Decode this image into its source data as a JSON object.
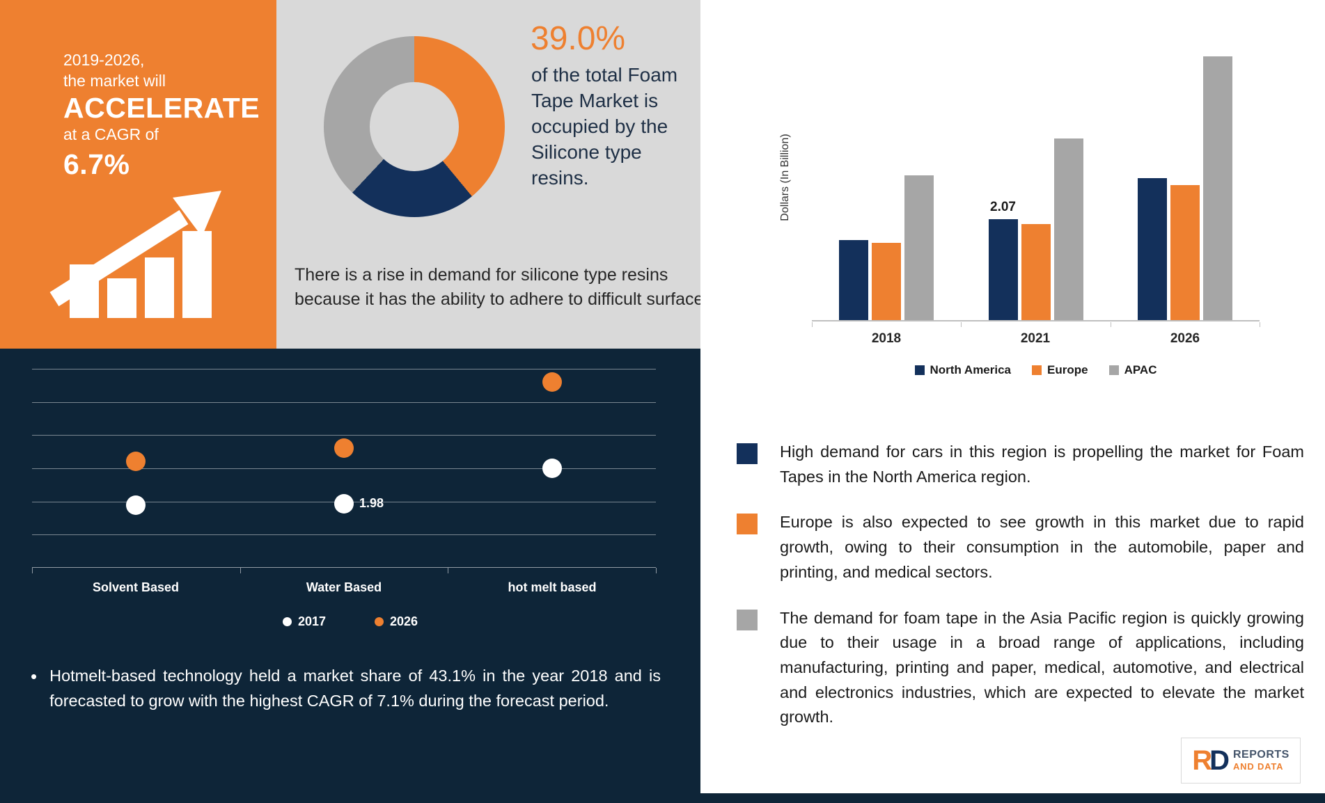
{
  "colors": {
    "orange": "#EE8030",
    "navy_panel": "#0E2538",
    "navy_series": "#13305B",
    "gray_panel": "#D9D9D9",
    "gray_series": "#A6A6A6",
    "yellow": "#FFC000",
    "white": "#FFFFFF"
  },
  "accelerate_panel": {
    "intro_line1": "2019-2026,",
    "intro_line2": "the market will",
    "headline": "ACCELERATE",
    "sub_line": "at a CAGR of",
    "cagr": "6.7%"
  },
  "silicone_panel": {
    "stat": "39.0%",
    "stat_description": "of the total Foam Tape Market is occupied by the Silicone type resins.",
    "note": "There is a rise in demand for silicone type resins because it has the ability to adhere to difficult surfaces"
  },
  "technology_section": {
    "marker": "•",
    "bullet": "Hotmelt-based technology held a market share of 43.1% in the year 2018 and is forecasted to grow with the highest CAGR of 7.1% during the forecast period."
  },
  "region_section": {
    "bullets": [
      {
        "name": "north-america",
        "color": "#13305B",
        "text": "High demand for cars in this region is propelling the market for Foam Tapes in the North America region."
      },
      {
        "name": "europe",
        "color": "#EE8030",
        "text": "Europe is also expected to see growth in this market due to rapid growth, owing to their consumption in the automobile, paper and printing, and medical sectors."
      },
      {
        "name": "apac",
        "color": "#A6A6A6",
        "text": "The demand for foam tape in the Asia Pacific region is quickly growing due to their usage in a broad range of applications, including manufacturing, printing and paper, medical, automotive, and electrical and electronics industries, which are expected to elevate the market growth."
      }
    ]
  },
  "logo": {
    "mark_r": "R",
    "mark_d": "D",
    "line1": "REPORTS",
    "line2": "AND DATA"
  },
  "chart_data": [
    {
      "id": "resin-type-donut",
      "type": "pie",
      "donut": true,
      "start_angle_deg": -14.4,
      "slices": [
        {
          "label": "",
          "value": 4.0,
          "color": "#FFC000"
        },
        {
          "label": "Silicone type resins",
          "value": 39.0,
          "color": "#EE8030"
        },
        {
          "label": "",
          "value": 23.0,
          "color": "#13305B"
        },
        {
          "label": "",
          "value": 34.0,
          "color": "#A6A6A6"
        }
      ],
      "callout": "39.0% of the total Foam Tape Market is occupied by the Silicone type resins."
    },
    {
      "id": "technology-dot-plot",
      "type": "scatter",
      "categories": [
        "Solvent Based",
        "Water Based",
        "hot melt based"
      ],
      "series": [
        {
          "name": "2017",
          "color": "#FFFFFF",
          "values": [
            1.97,
            1.98,
            2.25
          ]
        },
        {
          "name": "2026",
          "color": "#EE8030",
          "values": [
            2.3,
            2.4,
            2.9
          ]
        }
      ],
      "data_labels": [
        {
          "series_index": 0,
          "category_index": 1,
          "text": "1.98"
        }
      ],
      "ylim": [
        1.5,
        3.0
      ],
      "gridline_values": [
        3.0,
        2.75,
        2.5,
        2.25,
        2.0,
        1.75
      ],
      "legend_position": "bottom",
      "grid": true
    },
    {
      "id": "regional-bar-chart",
      "type": "bar",
      "categories": [
        "2018",
        "2021",
        "2026"
      ],
      "series": [
        {
          "name": "North America",
          "color": "#13305B",
          "values": [
            1.65,
            2.07,
            2.92
          ]
        },
        {
          "name": "Europe",
          "color": "#EE8030",
          "values": [
            1.58,
            1.97,
            2.77
          ]
        },
        {
          "name": "APAC",
          "color": "#A6A6A6",
          "values": [
            2.97,
            3.73,
            5.41
          ]
        }
      ],
      "ylabel": "Dollars (In Billion)",
      "ylim": [
        0,
        6
      ],
      "data_labels": [
        {
          "series_index": 0,
          "category_index": 1,
          "text": "2.07"
        }
      ],
      "legend_position": "bottom",
      "grid": false
    }
  ]
}
